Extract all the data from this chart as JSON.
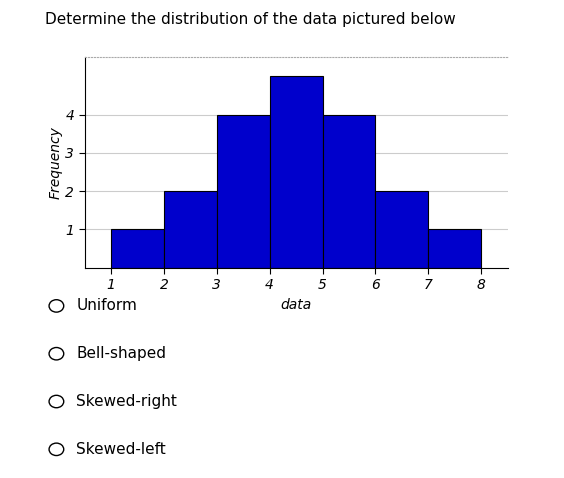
{
  "title": "Determine the distribution of the data pictured below",
  "bar_left_edges": [
    1,
    2,
    3,
    4,
    5,
    6,
    7
  ],
  "bar_heights": [
    1,
    2,
    4,
    5,
    4,
    2,
    1
  ],
  "bar_color": "#0000CC",
  "bar_edgecolor": "#000000",
  "bar_width": 1.0,
  "xlabel": "data",
  "ylabel": "Frequency",
  "xlim": [
    0.5,
    8.5
  ],
  "ylim": [
    0,
    5.5
  ],
  "xticks": [
    1,
    2,
    3,
    4,
    5,
    6,
    7,
    8
  ],
  "yticks": [
    1,
    2,
    3,
    4
  ],
  "xlabel_style": "italic",
  "ylabel_style": "italic",
  "tick_label_style": "italic",
  "grid_color": "#cccccc",
  "background_color": "#ffffff",
  "options": [
    "Uniform",
    "Bell-shaped",
    "Skewed-right",
    "Skewed-left"
  ],
  "title_fontsize": 11,
  "axis_label_fontsize": 10,
  "tick_fontsize": 10
}
